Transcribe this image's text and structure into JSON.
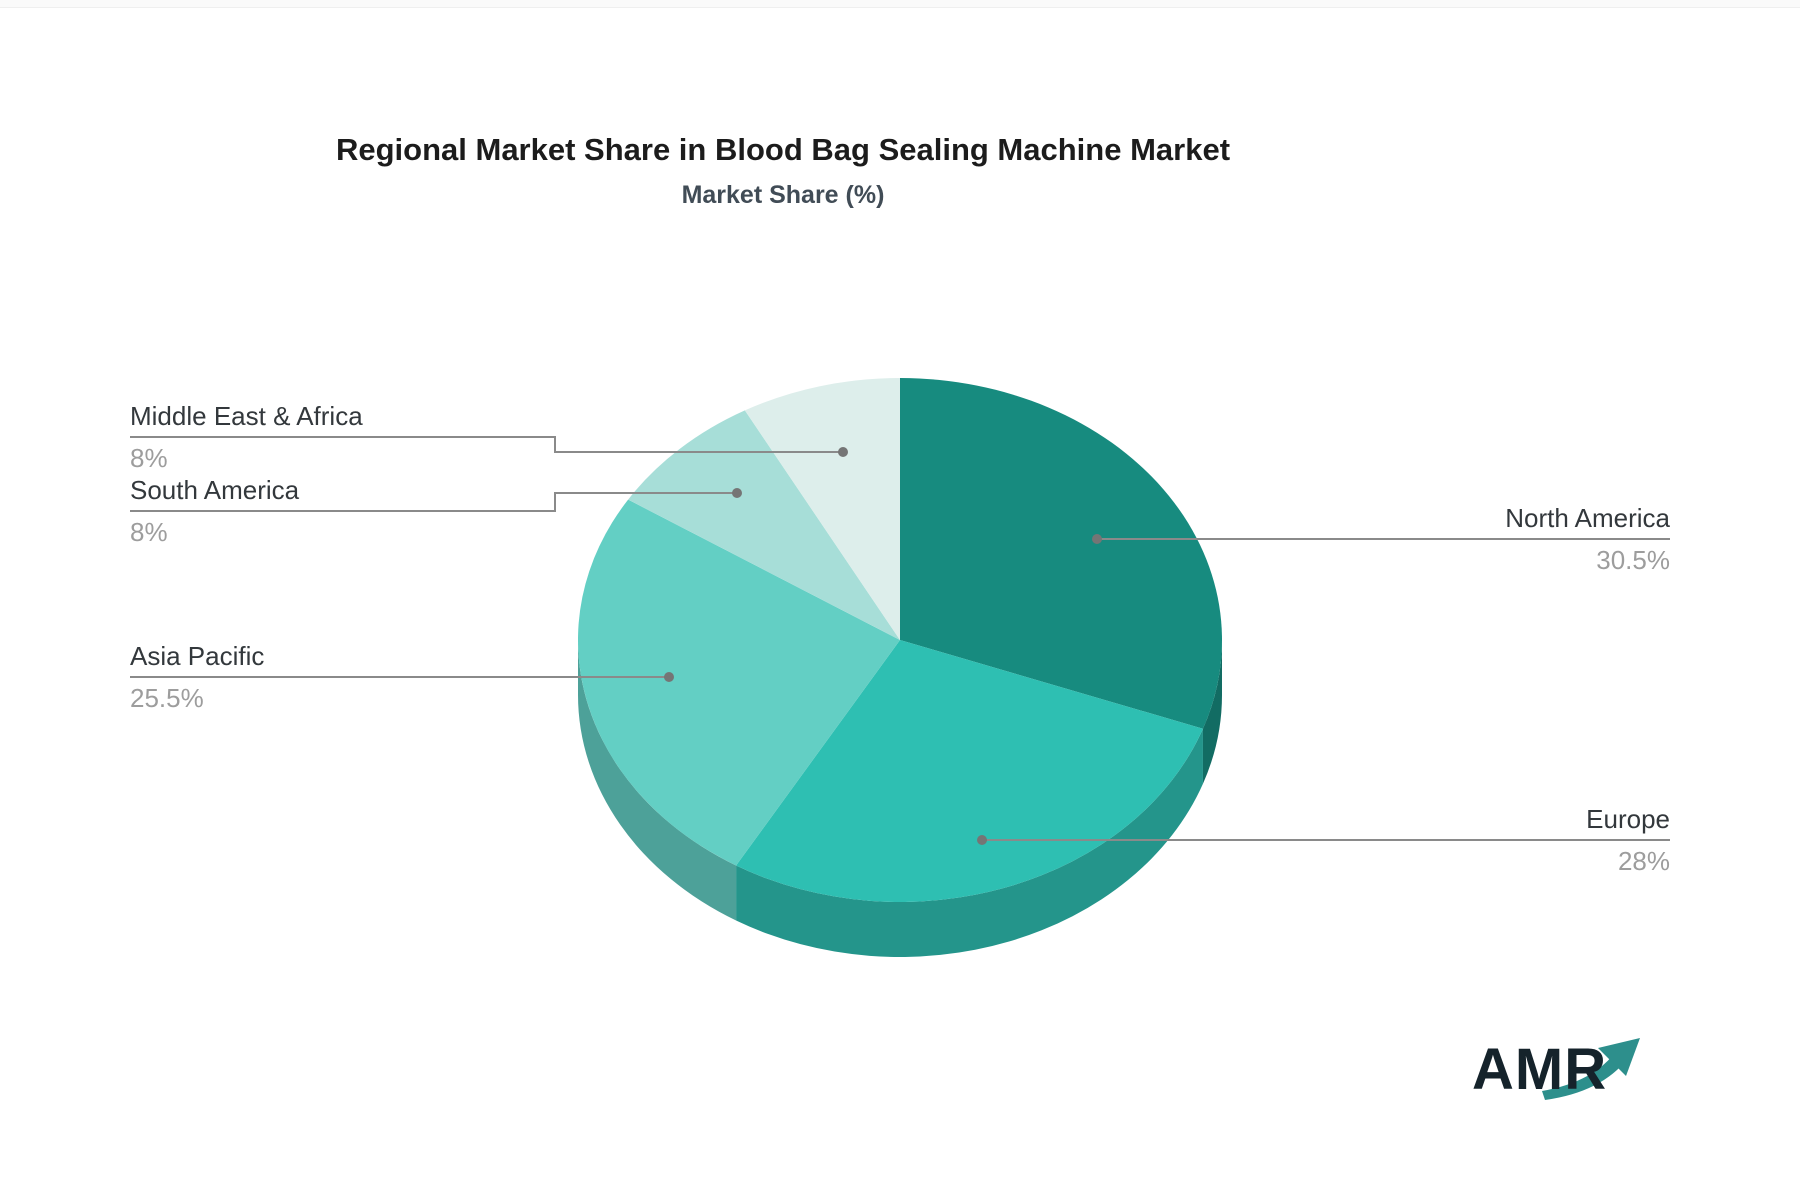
{
  "header": {
    "title": "Regional Market Share in Blood Bag Sealing Machine Market",
    "subtitle": "Market Share (%)"
  },
  "chart_data": {
    "type": "pie",
    "effect": "3d",
    "title": "Regional Market Share in Blood Bag Sealing Machine Market",
    "subtitle": "Market Share (%)",
    "unit": "%",
    "start_angle": "12-oclock, clockwise",
    "legend_position": "callout-labels",
    "slices": [
      {
        "label": "North America",
        "value": 30.5,
        "value_text": "30.5%",
        "color": "#178b7f",
        "callout_side": "right"
      },
      {
        "label": "Europe",
        "value": 28,
        "value_text": "28%",
        "color": "#2ebfb2",
        "callout_side": "right"
      },
      {
        "label": "Asia Pacific",
        "value": 25.5,
        "value_text": "25.5%",
        "color": "#63cfc4",
        "callout_side": "left"
      },
      {
        "label": "South America",
        "value": 8,
        "value_text": "8%",
        "color": "#a7ded8",
        "callout_side": "left"
      },
      {
        "label": "Middle East & Africa",
        "value": 8,
        "value_text": "8%",
        "color": "#ddeeeb",
        "callout_side": "left"
      }
    ],
    "leader_line_color": "#8a8a8a",
    "dot_color": "#757575"
  },
  "branding": {
    "logo_text": "AMR",
    "logo_color": "#15232b",
    "arrow_color": "#2d8f8c"
  }
}
